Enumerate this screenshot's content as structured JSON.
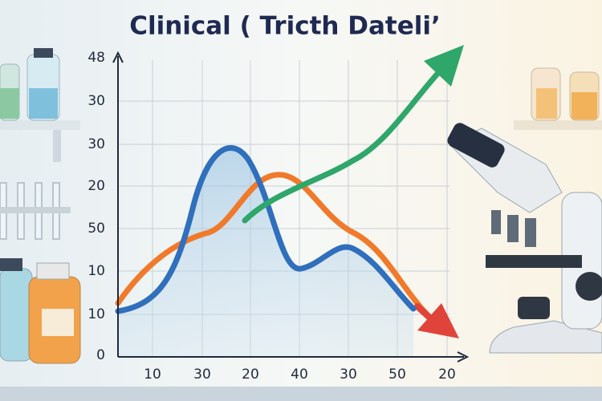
{
  "header": {
    "title": "Clinical ( Tricth Dateli’"
  },
  "axis": {
    "y_labels": [
      "48",
      "30",
      "30",
      "20",
      "50",
      "10",
      "10",
      "0"
    ],
    "x_labels": [
      "10",
      "30",
      "20",
      "40",
      "30",
      "50",
      "20"
    ]
  }
}
